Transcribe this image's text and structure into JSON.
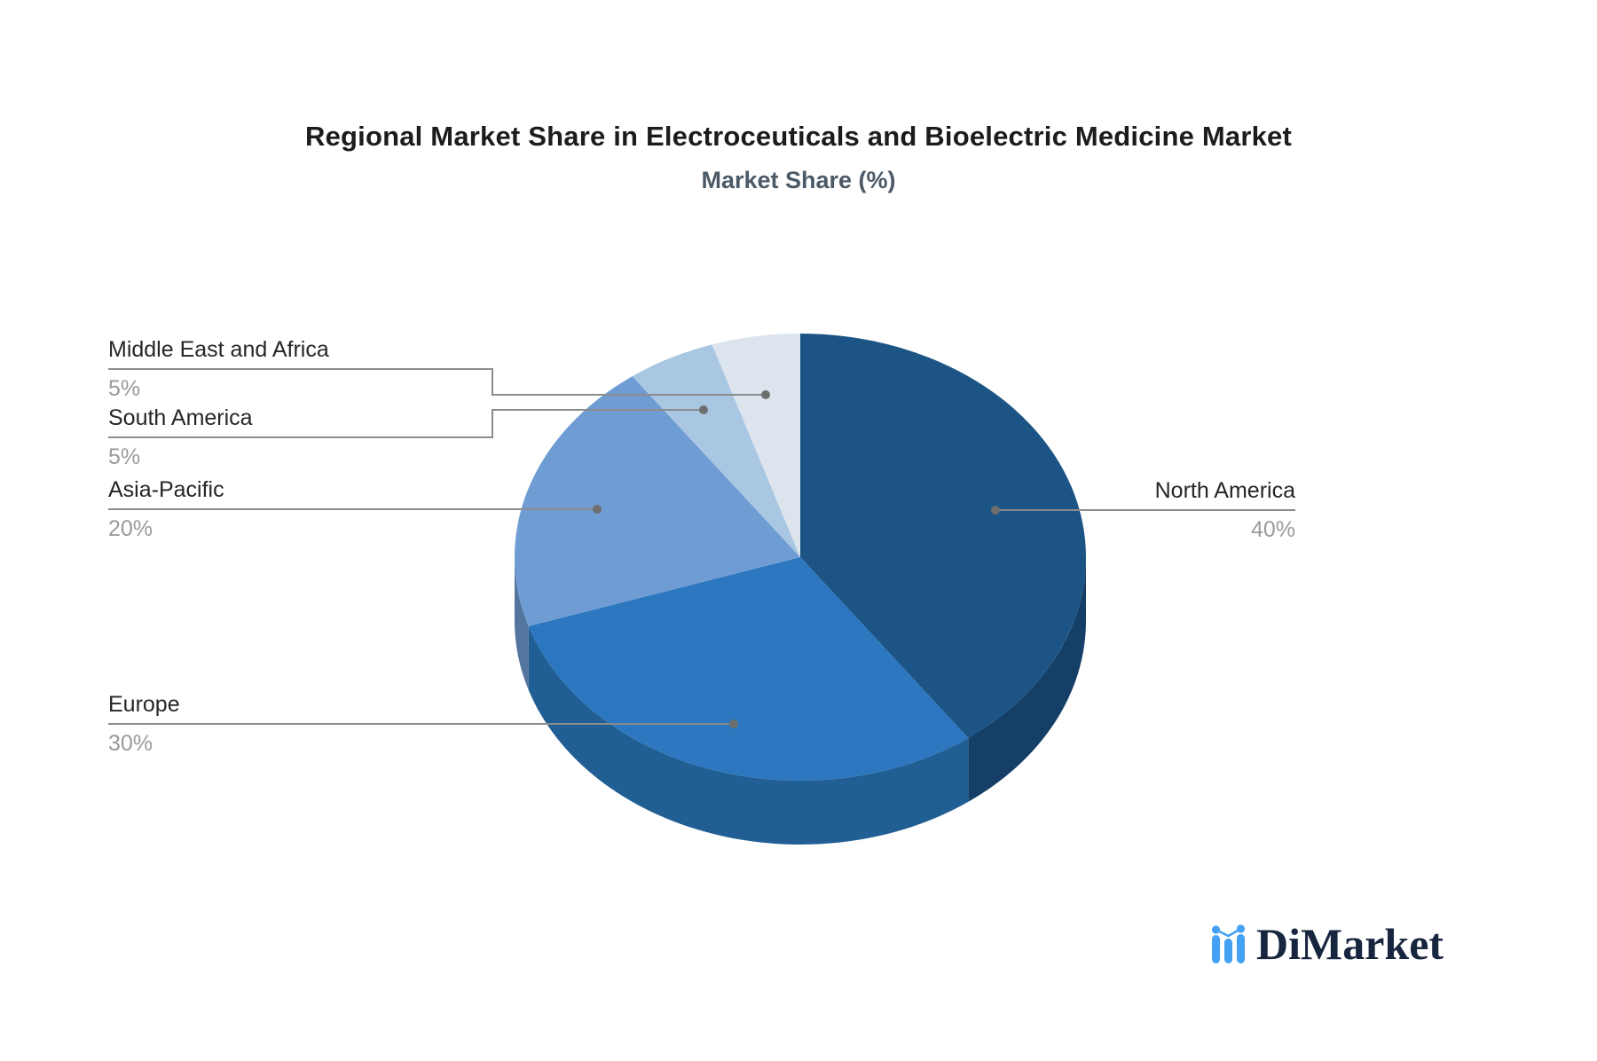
{
  "header": {
    "title": "Regional Market Share in Electroceuticals and Bioelectric Medicine Market",
    "subtitle": "Market Share (%)"
  },
  "chart_data": {
    "type": "pie",
    "title": "Regional Market Share in Electroceuticals and Bioelectric Medicine Market",
    "subtitle": "Market Share (%)",
    "unit": "percent",
    "start_angle": "12-oclock-clockwise",
    "style": "3d-pie-with-callout-labels",
    "legend_position": "none",
    "slices": [
      {
        "label": "North America",
        "value": 40,
        "pct_label": "40%",
        "color": "#1C5585",
        "rim_color": "#153F67"
      },
      {
        "label": "Europe",
        "value": 30,
        "pct_label": "30%",
        "color": "#2C77BF",
        "rim_color": "#215E94"
      },
      {
        "label": "Asia-Pacific",
        "value": 20,
        "pct_label": "20%",
        "color": "#6F9DD3",
        "rim_color": "#54759E"
      },
      {
        "label": "South America",
        "value": 5,
        "pct_label": "5%",
        "color": "#A9C6E2",
        "rim_color": null
      },
      {
        "label": "Middle East and Africa",
        "value": 5,
        "pct_label": "5%",
        "color": "#DCE4EE",
        "rim_color": null
      }
    ],
    "callout_line_color": "#8C8C8C",
    "callout_dot_color": "#6E6E6E"
  },
  "watermark": {
    "brand": "DiMarket",
    "icon": "bar-chart-logo-icon",
    "accent_color": "#45A1F4",
    "text_color": "#18253F"
  }
}
